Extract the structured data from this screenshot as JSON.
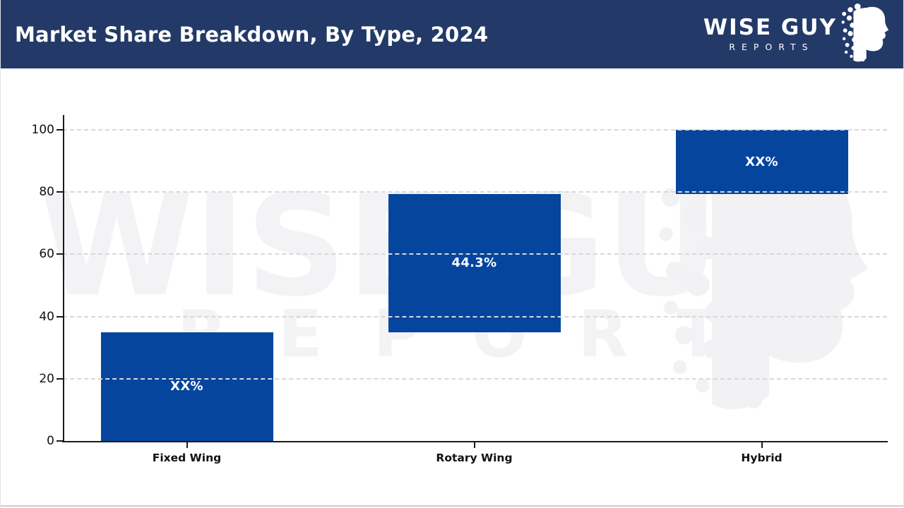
{
  "header": {
    "title": "Market Share Breakdown, By Type, 2024",
    "logo": {
      "line1": "WISE GUY",
      "line2": "REPORTS"
    }
  },
  "watermark": {
    "line1": "WISE GUY",
    "line2": "REPORTS"
  },
  "chart_data": {
    "type": "bar",
    "subtype": "waterfall",
    "title": "Market Share Breakdown, By Type, 2024",
    "categories": [
      "Fixed Wing",
      "Rotary Wing",
      "Hybrid"
    ],
    "bars": [
      {
        "category": "Fixed Wing",
        "start": 0,
        "end": 35,
        "value": 35,
        "value_label": "XX%"
      },
      {
        "category": "Rotary Wing",
        "start": 35,
        "end": 79.3,
        "value": 44.3,
        "value_label": "44.3%"
      },
      {
        "category": "Hybrid",
        "start": 79.3,
        "end": 100,
        "value": 20.7,
        "value_label": "XX%"
      }
    ],
    "yticks": [
      0,
      20,
      40,
      60,
      80,
      100
    ],
    "ytick_labels": [
      "0",
      "20",
      "40",
      "60",
      "80",
      "100"
    ],
    "ylim": [
      0,
      105
    ],
    "xlabel": "",
    "ylabel": "",
    "grid": "horizontal-dashed",
    "legend": "none"
  },
  "colors": {
    "header_bg": "#233A68",
    "bar": "#05459E",
    "grid": "#D8D8D8",
    "axis": "#1A1A1A",
    "watermark": "#F3F3F6",
    "page_bg": "#FFFFFF"
  }
}
